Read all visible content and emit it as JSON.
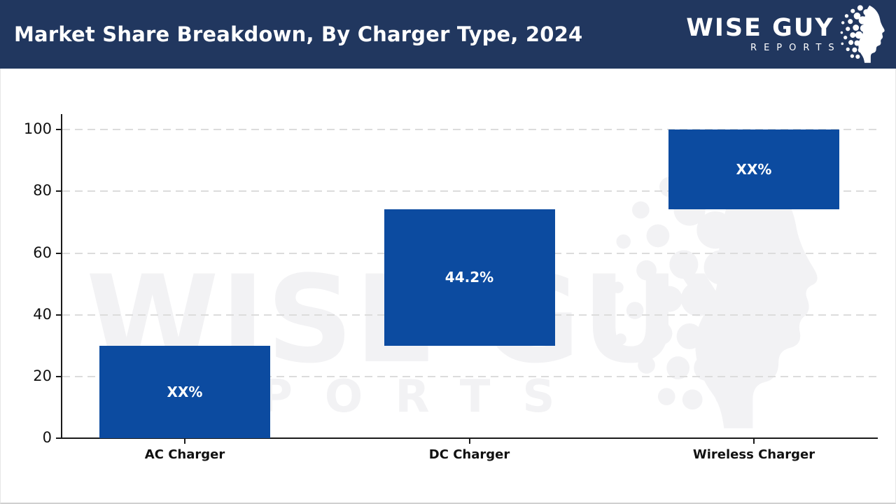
{
  "header": {
    "title": "Market Share Breakdown, By Charger Type, 2024",
    "logo": {
      "line1": "WISE GUY",
      "line2": "REPORTS"
    }
  },
  "watermark": {
    "line1": "WISE GUY",
    "line2": "REPORTS"
  },
  "chart_data": {
    "type": "bar",
    "subtype": "floating-segment",
    "title": "Market Share Breakdown, By Charger Type, 2024",
    "categories": [
      "AC Charger",
      "DC Charger",
      "Wireless Charger"
    ],
    "series": [
      {
        "name": "Market share (%)",
        "segments": [
          {
            "category": "AC Charger",
            "start": 0,
            "end": 30,
            "value_label": "XX%"
          },
          {
            "category": "DC Charger",
            "start": 30,
            "end": 74.2,
            "value_label": "44.2%"
          },
          {
            "category": "Wireless Charger",
            "start": 74.2,
            "end": 100,
            "value_label": "XX%"
          }
        ]
      }
    ],
    "xlabel": "",
    "ylabel": "",
    "yticks": [
      0,
      20,
      40,
      60,
      80,
      100
    ],
    "ylim": [
      0,
      105
    ],
    "grid": "horizontal-dashed",
    "legend": "none",
    "colors": {
      "bar": "#0C4BA0",
      "grid": "#DCDCDC",
      "axis": "#1A1A1A",
      "value_label": "#FFFFFF"
    }
  }
}
